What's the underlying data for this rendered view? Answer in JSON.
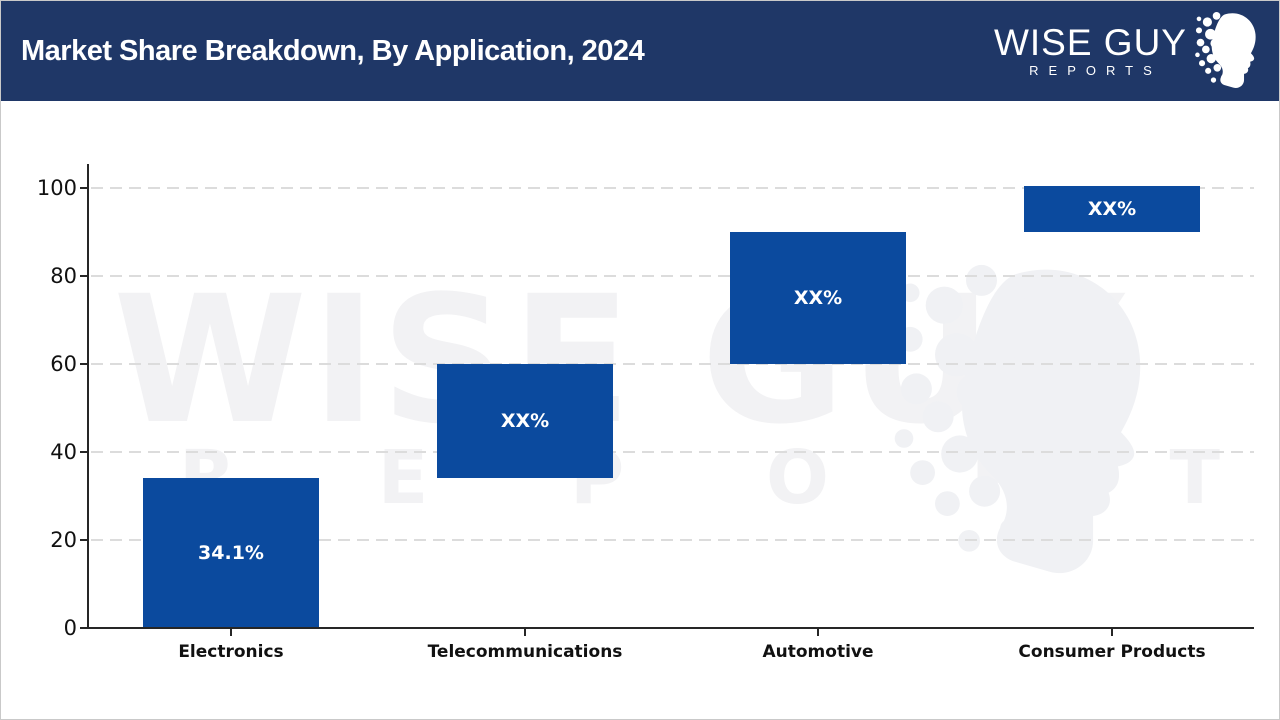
{
  "header": {
    "title": "Market Share Breakdown, By Application, 2024",
    "brand_line1": "WISE GUY",
    "brand_line2": "REPORTS"
  },
  "watermark": {
    "line1": "WISE GUY",
    "line2": "R E P O R T S"
  },
  "chart_data": {
    "type": "bar",
    "subtype": "waterfall",
    "title": "Market Share Breakdown, By Application, 2024",
    "categories": [
      "Electronics",
      "Telecommunications",
      "Automotive",
      "Consumer Products"
    ],
    "series": [
      {
        "category": "Electronics",
        "start": 0,
        "end": 34.1,
        "label": "34.1%"
      },
      {
        "category": "Telecommunications",
        "start": 34.1,
        "end": 60.0,
        "label": "XX%"
      },
      {
        "category": "Automotive",
        "start": 60.0,
        "end": 90.0,
        "label": "XX%"
      },
      {
        "category": "Consumer Products",
        "start": 90.0,
        "end": 100.5,
        "label": "XX%"
      }
    ],
    "xlabel": "",
    "ylabel": "",
    "yticks": [
      0,
      20,
      40,
      60,
      80,
      100
    ],
    "ylim": [
      0,
      105.5
    ],
    "grid": "horizontal-dashed",
    "legend": "none",
    "bar_color": "#0b4a9e",
    "bar_label_color": "#ffffff"
  },
  "colors": {
    "header_bg": "#1f3767",
    "bar": "#0b4a9e",
    "watermark": "#f2f2f4",
    "grid": "#dcdcdc",
    "axis": "#262626",
    "text": "#111111"
  }
}
